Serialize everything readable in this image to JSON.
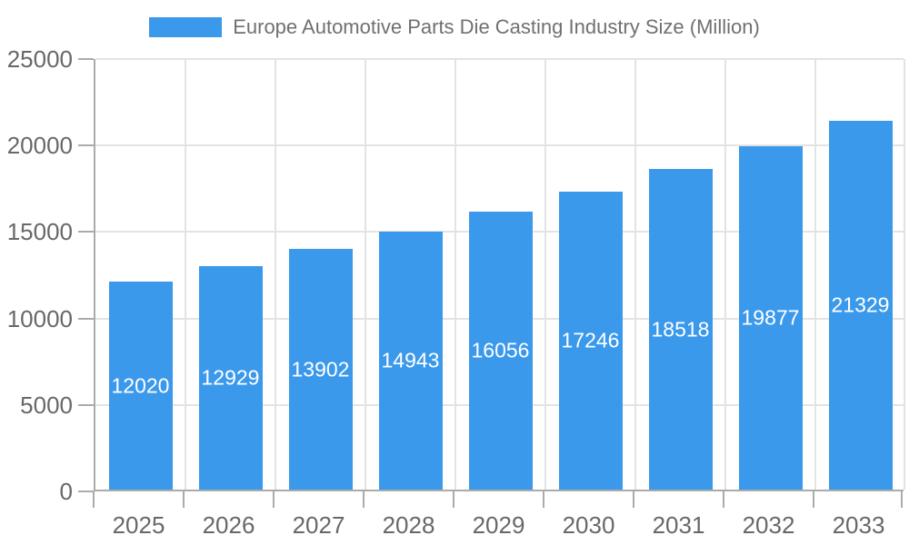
{
  "chart_data": {
    "type": "bar",
    "title": "Europe Automotive Parts Die Casting Industry Size (Million)",
    "categories": [
      "2025",
      "2026",
      "2027",
      "2028",
      "2029",
      "2030",
      "2031",
      "2032",
      "2033"
    ],
    "values": [
      12020,
      12929,
      13902,
      14943,
      16056,
      17246,
      18518,
      19877,
      21329
    ],
    "ylim": [
      0,
      25000
    ],
    "yticks": [
      0,
      5000,
      10000,
      15000,
      20000,
      25000
    ],
    "xlabel": "",
    "ylabel": "",
    "legend_position": "top",
    "grid": true,
    "colors": {
      "bar": "#3B99EC",
      "bar_label": "#FFFFFF",
      "axis_text": "#686868",
      "legend_text": "#707070",
      "gridline": "#E3E3E3",
      "axis_line": "#ABABAB"
    }
  }
}
